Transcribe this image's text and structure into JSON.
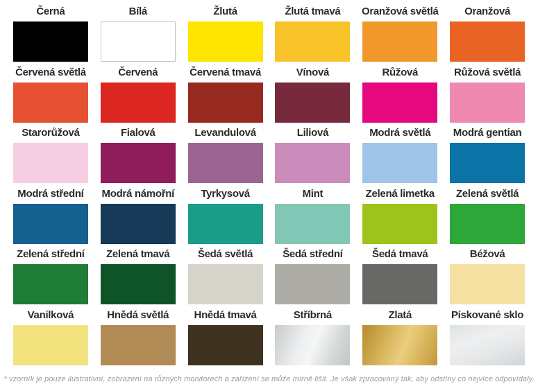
{
  "page": {
    "background": "#ffffff",
    "label_color": "#2b2b2b",
    "footer_color": "#9b9b9b"
  },
  "palette": {
    "columns": 6,
    "swatches": [
      {
        "label": "Černá",
        "color": "#000000"
      },
      {
        "label": "Bílá",
        "color": "#ffffff",
        "border": "#c3c3c3"
      },
      {
        "label": "Žlutá",
        "color": "#fee500"
      },
      {
        "label": "Žlutá tmavá",
        "color": "#f8c328"
      },
      {
        "label": "Oranžová světlá",
        "color": "#f0982b"
      },
      {
        "label": "Oranžová",
        "color": "#e96325"
      },
      {
        "label": "Červená světlá",
        "color": "#e55132"
      },
      {
        "label": "Červená",
        "color": "#dc2621"
      },
      {
        "label": "Červená tmavá",
        "color": "#972a20"
      },
      {
        "label": "Vínová",
        "color": "#772a3c"
      },
      {
        "label": "Růžová",
        "color": "#e5087f"
      },
      {
        "label": "Růžová světlá",
        "color": "#ef89b0"
      },
      {
        "label": "Starorůžová",
        "color": "#f6cee3"
      },
      {
        "label": "Fialová",
        "color": "#8f1d5c"
      },
      {
        "label": "Levandulová",
        "color": "#9c6591"
      },
      {
        "label": "Liliová",
        "color": "#c98cbb"
      },
      {
        "label": "Modrá světlá",
        "color": "#9fc4e8"
      },
      {
        "label": "Modrá gentian",
        "color": "#0c73a6"
      },
      {
        "label": "Modrá střední",
        "color": "#14608f"
      },
      {
        "label": "Modrá námořní",
        "color": "#163a58"
      },
      {
        "label": "Tyrkysová",
        "color": "#1b9c89"
      },
      {
        "label": "Mint",
        "color": "#82c7b5"
      },
      {
        "label": "Zelená limetka",
        "color": "#9ec41c"
      },
      {
        "label": "Zelená světlá",
        "color": "#2ea63a"
      },
      {
        "label": "Zelená střední",
        "color": "#1f7c37"
      },
      {
        "label": "Zelená tmavá",
        "color": "#0f5429"
      },
      {
        "label": "Šedá světlá",
        "color": "#d7d4cc"
      },
      {
        "label": "Šedá střední",
        "color": "#aeaca6"
      },
      {
        "label": "Šedá tmavá",
        "color": "#686867"
      },
      {
        "label": "Béžová",
        "color": "#f6e1a3"
      },
      {
        "label": "Vanilková",
        "color": "#f3e37f"
      },
      {
        "label": "Hnědá světlá",
        "color": "#b18b56"
      },
      {
        "label": "Hnědá tmavá",
        "color": "#3e3120"
      },
      {
        "label": "Stříbrná",
        "gradient": {
          "angle": 112,
          "stops": [
            "#c7cacc 0%",
            "#eef0f1 38%",
            "#f5f6f6 52%",
            "#d4d7d8 78%",
            "#c3c6c8 100%"
          ]
        }
      },
      {
        "label": "Zlatá",
        "gradient": {
          "angle": 112,
          "stops": [
            "#b68b2c 0%",
            "#d4b055 30%",
            "#eace7e 55%",
            "#d3af54 82%",
            "#c1973a 100%"
          ]
        }
      },
      {
        "label": "Pískované sklo",
        "gradient": {
          "angle": 160,
          "stops": [
            "#dfe2e4 0%",
            "#edeff0 35%",
            "#e6e8ea 62%",
            "#d2d5d7 100%"
          ]
        }
      }
    ]
  },
  "footer": {
    "note": "* vzorník je pouze ilustrativní, zobrazení na různých monitorech a zařízení se může mírně lišit. Je však zpracovaný tak, aby odstíny co nejvíce odpovídaly."
  }
}
